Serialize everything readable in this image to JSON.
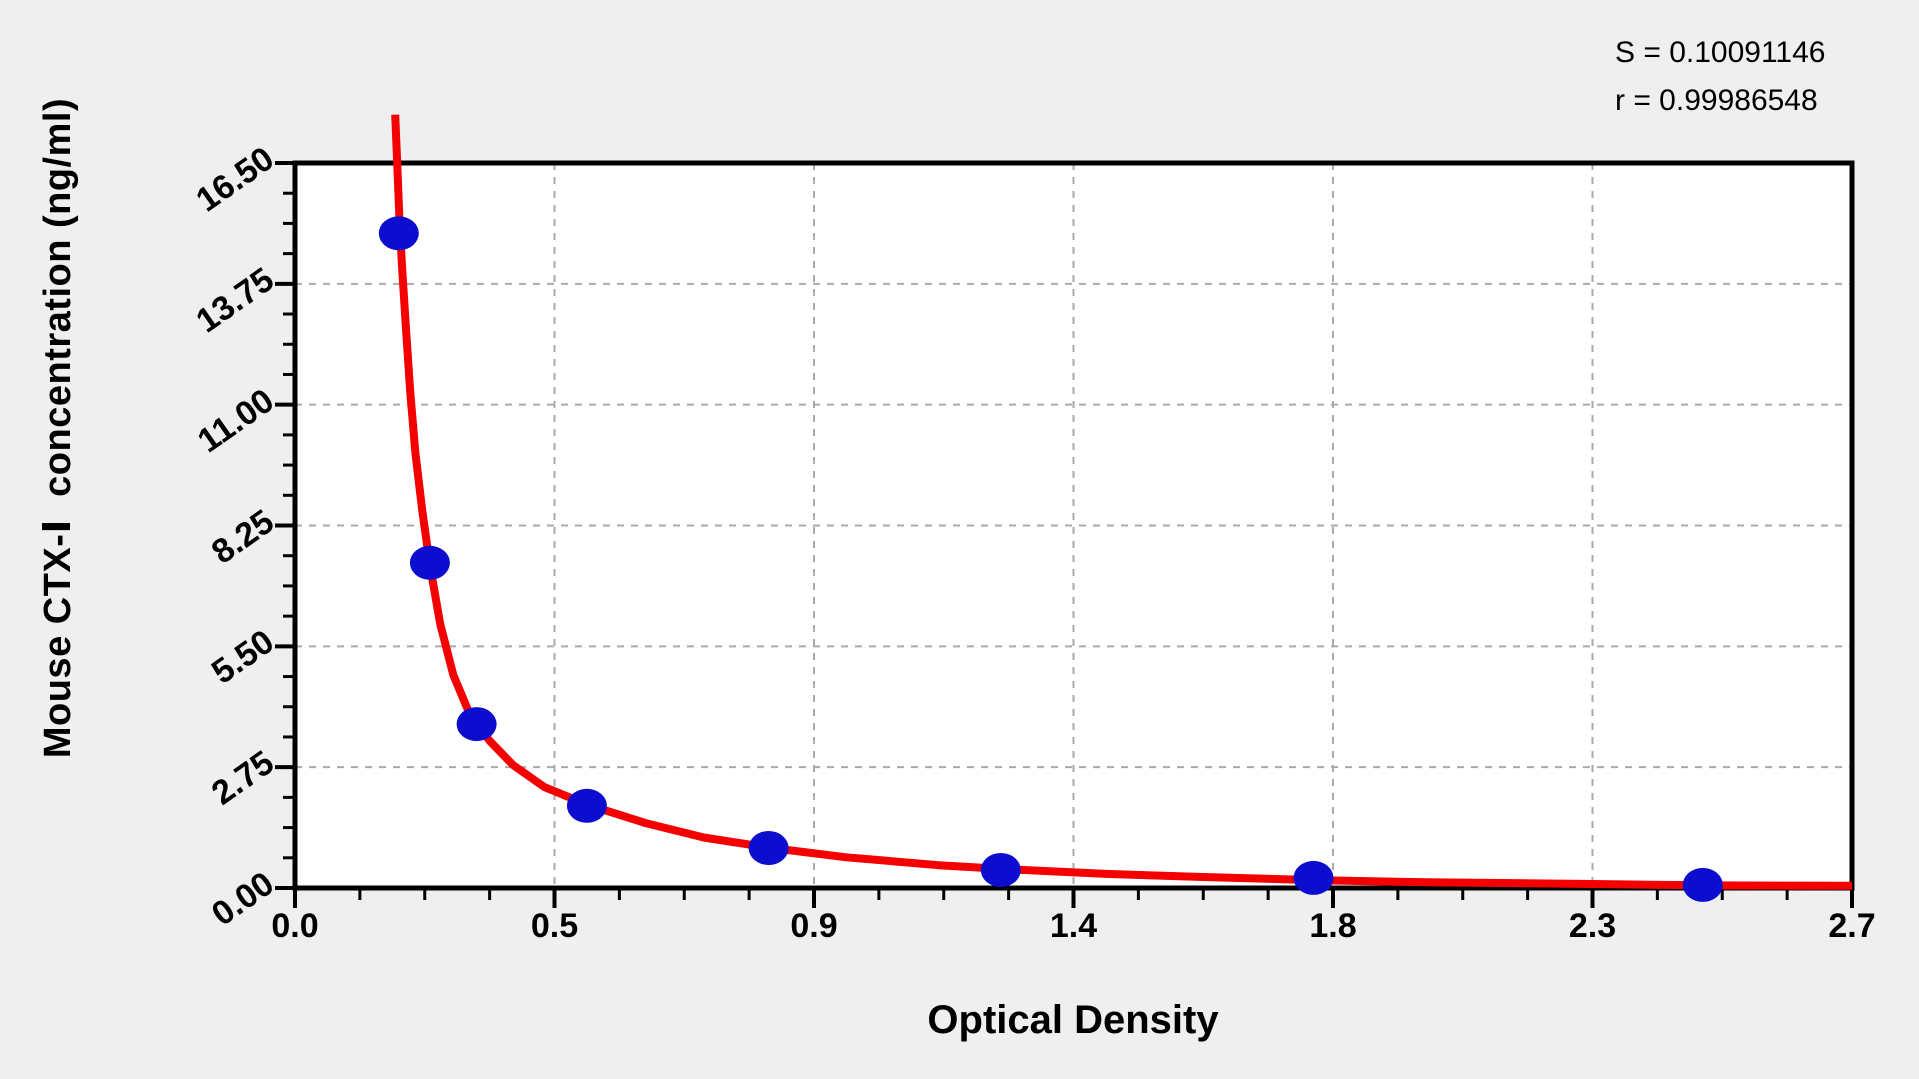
{
  "figure": {
    "background_color": "#efefef",
    "plot_background_color": "#ffffff",
    "axis_color": "#000000",
    "gridline_color": "#aaaaaa",
    "stats": {
      "s_label": "S = 0.10091146",
      "r_label": "r = 0.99986548"
    },
    "x_axis": {
      "title": "Optical Density",
      "tick_labels": [
        "0.0",
        "0.5",
        "0.9",
        "1.4",
        "1.8",
        "2.3",
        "2.7"
      ],
      "minor_ticks_per_interval": 3
    },
    "y_axis": {
      "title": "Mouse CTX-Ⅰ  concentration (ng/ml)",
      "tick_labels": [
        "0.00",
        "2.75",
        "5.50",
        "8.25",
        "11.00",
        "13.75",
        "16.50"
      ],
      "minor_ticks_per_interval": 3
    }
  },
  "chart_data": {
    "type": "scatter",
    "title": "",
    "xlabel": "Optical Density",
    "ylabel": "Mouse CTX-Ⅰ concentration (ng/ml)",
    "xlim": [
      0,
      2.7
    ],
    "ylim": [
      0,
      16.5
    ],
    "x_tick_values": [
      0,
      0.5,
      0.9,
      1.4,
      1.8,
      2.3,
      2.7
    ],
    "y_tick_values": [
      0,
      2.75,
      5.5,
      8.25,
      11.0,
      13.75,
      16.5
    ],
    "grid": "dashed, at all interior major ticks",
    "legend_position": "none",
    "annotations": [
      {
        "text": "S = 0.10091146",
        "position": "top-right"
      },
      {
        "text": "r = 0.99986548",
        "position": "top-right"
      }
    ],
    "point_color": "#0d0dd0",
    "curve_color": "#f40000",
    "series": [
      {
        "name": "standard-points",
        "style": "filled ellipse markers",
        "points": [
          {
            "od": 0.2,
            "conc": 14.9
          },
          {
            "od": 0.26,
            "conc": 7.4
          },
          {
            "od": 0.35,
            "conc": 3.73
          },
          {
            "od": 0.55,
            "conc": 1.87
          },
          {
            "od": 0.83,
            "conc": 0.91
          },
          {
            "od": 1.26,
            "conc": 0.41
          },
          {
            "od": 1.77,
            "conc": 0.23
          },
          {
            "od": 2.47,
            "conc": 0.07
          }
        ]
      },
      {
        "name": "fitted-curve",
        "style": "line",
        "samples": [
          [
            0.193,
            17.6
          ],
          [
            0.197,
            16.5
          ],
          [
            0.201,
            15.3
          ],
          [
            0.206,
            14.2
          ],
          [
            0.213,
            12.9
          ],
          [
            0.222,
            11.3
          ],
          [
            0.232,
            9.9
          ],
          [
            0.245,
            8.6
          ],
          [
            0.26,
            7.35
          ],
          [
            0.28,
            6.0
          ],
          [
            0.305,
            4.85
          ],
          [
            0.335,
            4.0
          ],
          [
            0.375,
            3.35
          ],
          [
            0.42,
            2.8
          ],
          [
            0.48,
            2.3
          ],
          [
            0.55,
            1.9
          ],
          [
            0.64,
            1.48
          ],
          [
            0.73,
            1.15
          ],
          [
            0.83,
            0.92
          ],
          [
            0.96,
            0.7
          ],
          [
            1.14,
            0.52
          ],
          [
            1.27,
            0.43
          ],
          [
            1.45,
            0.32
          ],
          [
            1.6,
            0.25
          ],
          [
            1.77,
            0.18
          ],
          [
            1.98,
            0.13
          ],
          [
            2.3,
            0.09
          ],
          [
            2.48,
            0.06
          ],
          [
            2.7,
            0.05
          ]
        ]
      }
    ]
  }
}
